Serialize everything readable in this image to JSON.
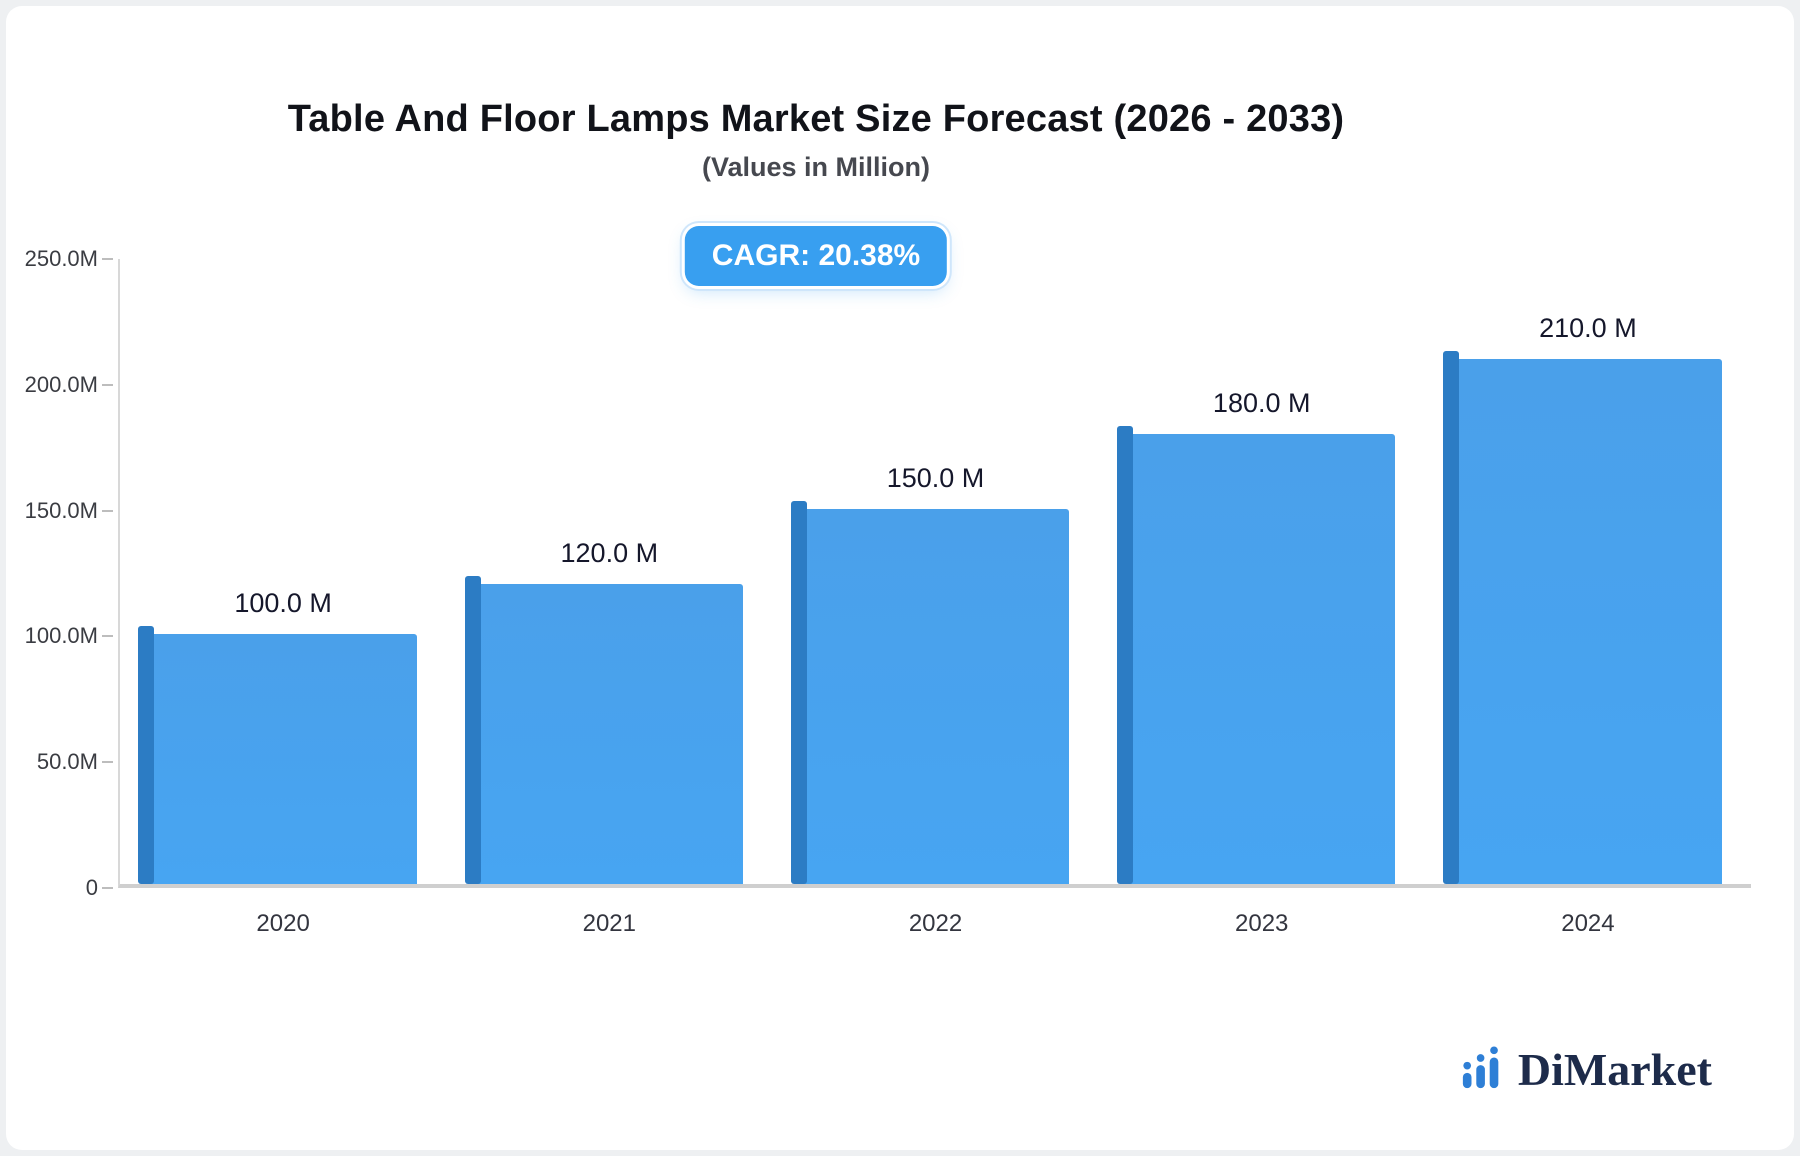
{
  "chart_data": {
    "type": "bar",
    "title": "Table And Floor Lamps Market Size Forecast (2026 - 2033)",
    "subtitle": "(Values in Million)",
    "cagr_label": "CAGR: 20.38%",
    "categories": [
      "2020",
      "2021",
      "2022",
      "2023",
      "2024"
    ],
    "values": [
      100,
      120,
      150,
      180,
      210
    ],
    "value_labels": [
      "100.0 M",
      "120.0 M",
      "150.0 M",
      "180.0 M",
      "210.0 M"
    ],
    "ylim": [
      0,
      250
    ],
    "y_ticks": [
      {
        "label": "250.0M",
        "value": 250
      },
      {
        "label": "200.0M",
        "value": 200
      },
      {
        "label": "150.0M",
        "value": 150
      },
      {
        "label": "100.0M",
        "value": 100
      },
      {
        "label": "50.0M",
        "value": 50
      },
      {
        "label": "0",
        "value": 0
      }
    ],
    "xlabel": "",
    "ylabel": "",
    "grid": "off",
    "legend": "none",
    "bar_color_top": "#4aa0ea",
    "bar_color_bottom": "#47a5f2",
    "bar_side_color": "#2c7cc4",
    "badge_color": "#389ff0"
  },
  "logo": {
    "text": "DiMarket",
    "icon": "bar-chart-icon",
    "text_color": "#1d2b4a",
    "icon_color": "#2e7fd6"
  }
}
